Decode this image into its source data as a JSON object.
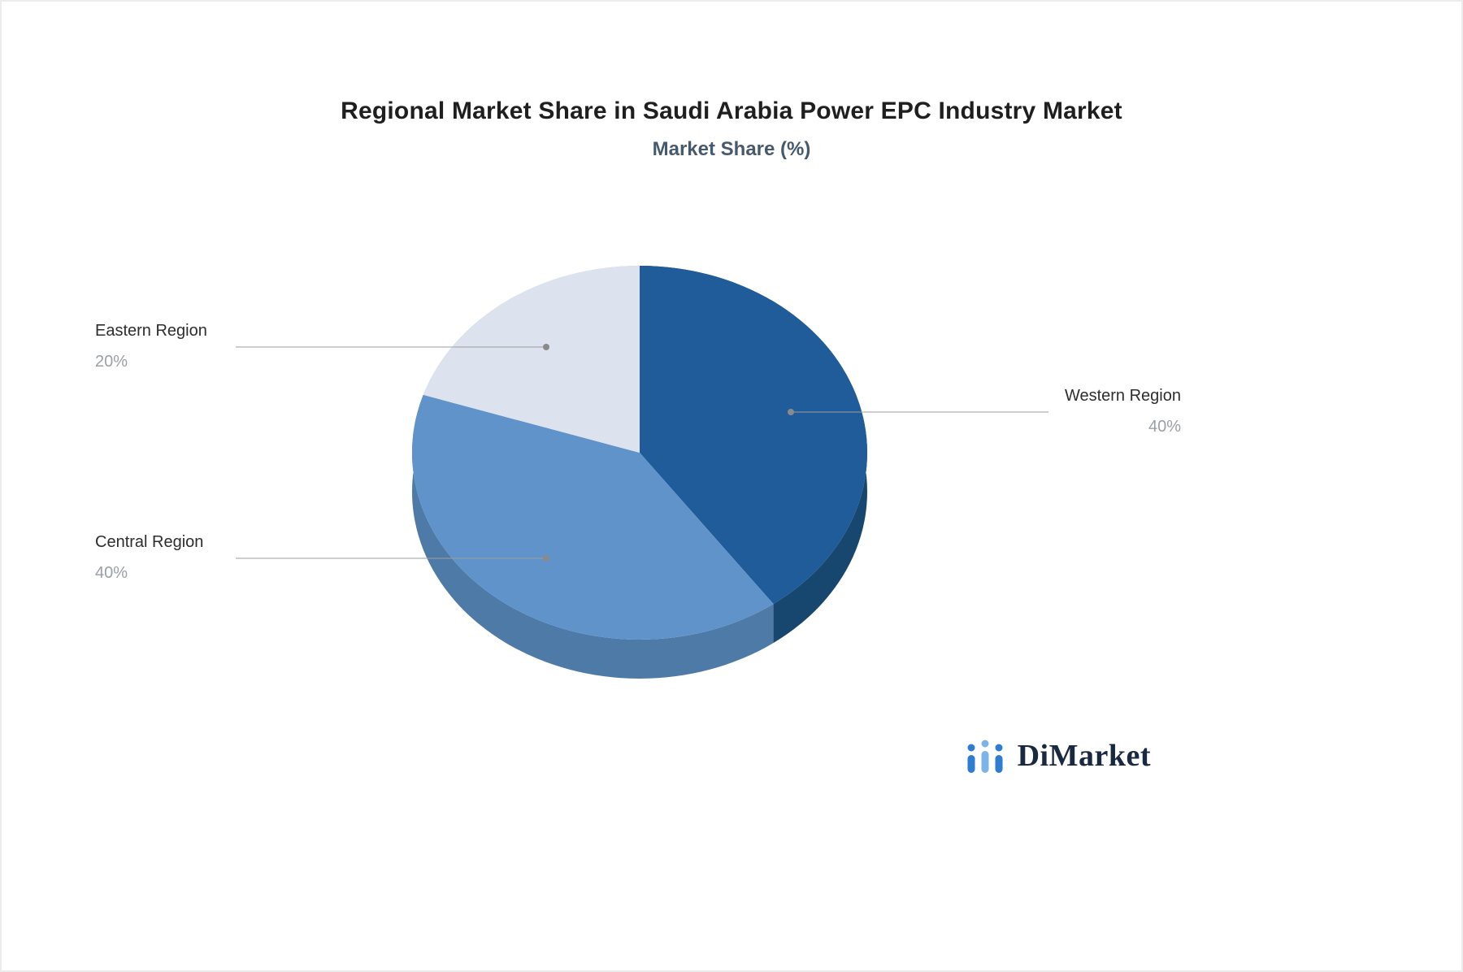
{
  "title": "Regional Market Share in Saudi Arabia Power EPC Industry Market",
  "subtitle": "Market Share (%)",
  "brand": {
    "name": "DiMarket",
    "icon": "bar-chart-logo-icon",
    "text_color": "#192940",
    "icon_color": "#2e7dd1"
  },
  "chart_data": {
    "type": "pie",
    "title": "Regional Market Share in Saudi Arabia Power EPC Industry Market",
    "subtitle": "Market Share (%)",
    "unit": "%",
    "style": "3d-pie",
    "start_angle_deg": 0,
    "direction": "clockwise",
    "legend_position": "none",
    "labels": "leader-lines",
    "slices": [
      {
        "label": "Western Region",
        "value": 40,
        "display_value": "40%",
        "color": "#1f5c99",
        "depth_color": "#17466f"
      },
      {
        "label": "Central Region",
        "value": 40,
        "display_value": "40%",
        "color": "#6093c9",
        "depth_color": "#4d7aa6"
      },
      {
        "label": "Eastern Region",
        "value": 20,
        "display_value": "20%",
        "color": "#dde3ee",
        "depth_color": "#b8c1d2"
      }
    ],
    "leader_line_color": "#9e9e9e",
    "label_name_color": "#2d2d2d",
    "label_value_color": "#9aa0a6"
  }
}
